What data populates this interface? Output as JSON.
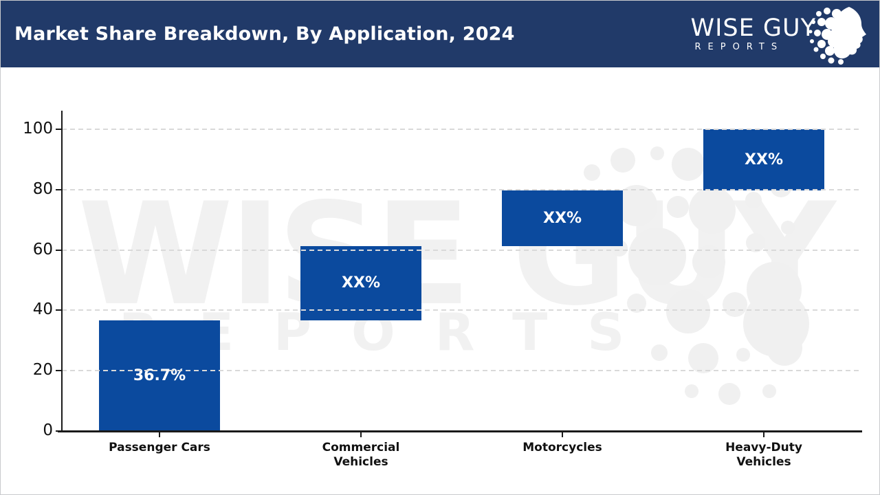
{
  "header": {
    "title": "Market Share Breakdown, By Application, 2024",
    "logo": {
      "line1": "WISE GUY",
      "line2": "REPORTS"
    },
    "bg_color": "#213a69"
  },
  "watermark": {
    "line1": "WISE GUY",
    "line2": "REPORTS"
  },
  "chart_data": {
    "type": "bar",
    "subtype": "waterfall",
    "title": "Market Share Breakdown, By Application, 2024",
    "categories": [
      "Passenger Cars",
      "Commercial\nVehicles",
      "Motorcycles",
      "Heavy-Duty\nVehicles"
    ],
    "values": [
      36.7,
      24.6,
      18.4,
      20.3
    ],
    "cumulative": [
      0,
      36.7,
      61.3,
      79.7,
      100
    ],
    "bar_labels": [
      "36.7%",
      "XX%",
      "XX%",
      "XX%"
    ],
    "ylim": [
      0,
      100
    ],
    "yticks": [
      0,
      20,
      40,
      60,
      80,
      100
    ],
    "grid": "horizontal-dashed",
    "legend": "none",
    "bar_color": "#0b4a9e",
    "bar_label_color": "#ffffff",
    "axis_color": "#1a1a1a",
    "gridline_color": "#d9d9d9"
  }
}
